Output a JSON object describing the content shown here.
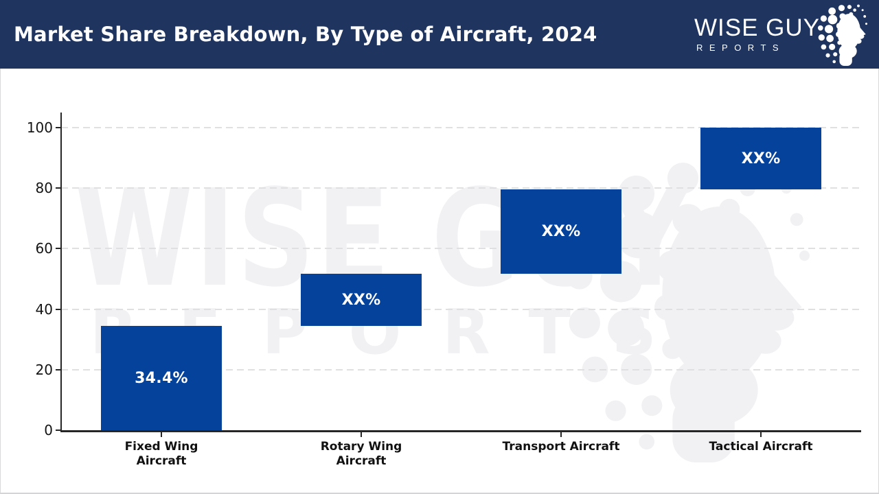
{
  "header": {
    "title": "Market Share Breakdown, By Type of Aircraft, 2024",
    "logo": {
      "name": "WISE GUY",
      "tagline": "REPORTS"
    }
  },
  "watermark": {
    "name": "WISE GUY",
    "tagline": "REPORTS"
  },
  "chart_data": {
    "type": "bar",
    "subtype": "waterfall",
    "title": "Market Share Breakdown, By Type of Aircraft, 2024",
    "categories": [
      "Fixed Wing Aircraft",
      "Rotary Wing Aircraft",
      "Transport Aircraft",
      "Tactical Aircraft"
    ],
    "category_display": [
      [
        "Fixed Wing",
        "Aircraft"
      ],
      [
        "Rotary Wing",
        "Aircraft"
      ],
      [
        "Transport Aircraft"
      ],
      [
        "Tactical Aircraft"
      ]
    ],
    "segments": [
      {
        "category": "Fixed Wing Aircraft",
        "start": 0,
        "end": 34.4,
        "label": "34.4%"
      },
      {
        "category": "Rotary Wing Aircraft",
        "start": 34.4,
        "end": 51.6,
        "label": "XX%"
      },
      {
        "category": "Transport Aircraft",
        "start": 51.6,
        "end": 79.6,
        "label": "XX%"
      },
      {
        "category": "Tactical Aircraft",
        "start": 79.6,
        "end": 100,
        "label": "XX%"
      }
    ],
    "ylim": [
      0,
      100
    ],
    "yticks": [
      0,
      20,
      40,
      60,
      80,
      100
    ],
    "grid": "horizontal-dashed",
    "legend": "none",
    "bar_color": "#05429b",
    "bar_label_color": "#ffffff"
  },
  "colors": {
    "header_bg": "#1f3560",
    "bar": "#05429b",
    "axis": "#262626",
    "grid": "#e0e0e3",
    "text": "#141414",
    "watermark": "#f1f1f4"
  }
}
